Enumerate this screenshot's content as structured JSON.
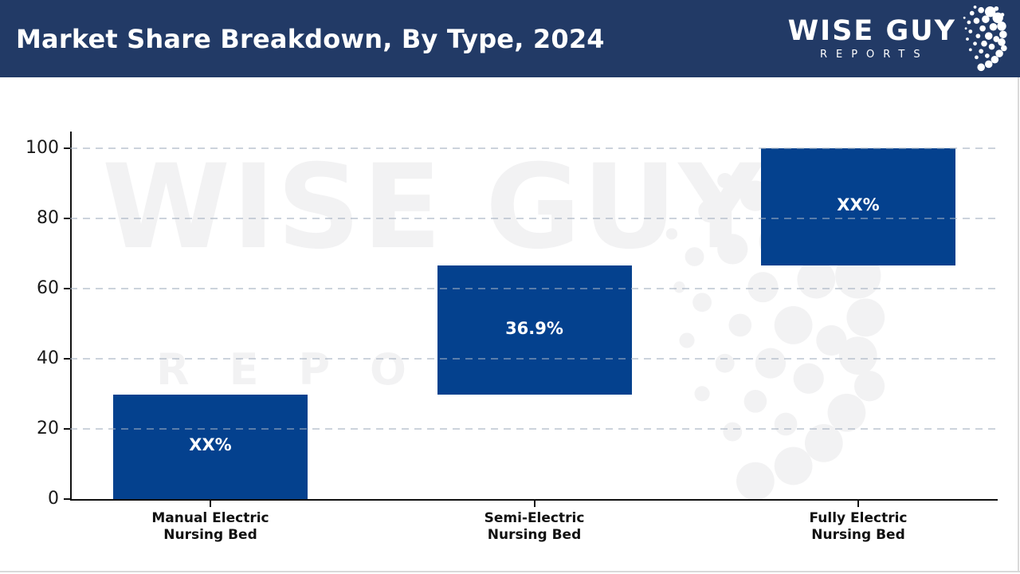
{
  "header": {
    "title": "Market Share Breakdown, By Type, 2024",
    "logo": {
      "line1": "WISE GUY",
      "line2": "REPORTS"
    }
  },
  "watermark": {
    "line1": "WISE GUY",
    "line2": "REPORTS"
  },
  "chart_data": {
    "type": "bar",
    "variant": "waterfall-stacked",
    "title": "Market Share Breakdown, By Type, 2024",
    "categories": [
      [
        "Manual Electric",
        "Nursing Bed"
      ],
      [
        "Semi-Electric",
        "Nursing Bed"
      ],
      [
        "Fully Electric",
        "Nursing Bed"
      ]
    ],
    "segments": [
      {
        "label": "Manual Electric Nursing Bed",
        "start": 0,
        "end": 29.8,
        "value_label": "XX%"
      },
      {
        "label": "Semi-Electric Nursing Bed",
        "start": 29.8,
        "end": 66.7,
        "value_label": "36.9%"
      },
      {
        "label": "Fully Electric Nursing Bed",
        "start": 66.7,
        "end": 100,
        "value_label": "XX%"
      }
    ],
    "yticks": [
      0,
      20,
      40,
      60,
      80,
      100
    ],
    "ylim": [
      0,
      104.7
    ],
    "xlabel": "",
    "ylabel": "",
    "grid": "horizontal-dashed",
    "legend": "none",
    "bar_color": "#04418E",
    "value_label_color": "#ffffff"
  },
  "colors": {
    "header_bg": "#223A66",
    "bar": "#04418E",
    "axis": "#111111",
    "watermark": "#f2f2f3",
    "frame": "#d9d9d9"
  }
}
